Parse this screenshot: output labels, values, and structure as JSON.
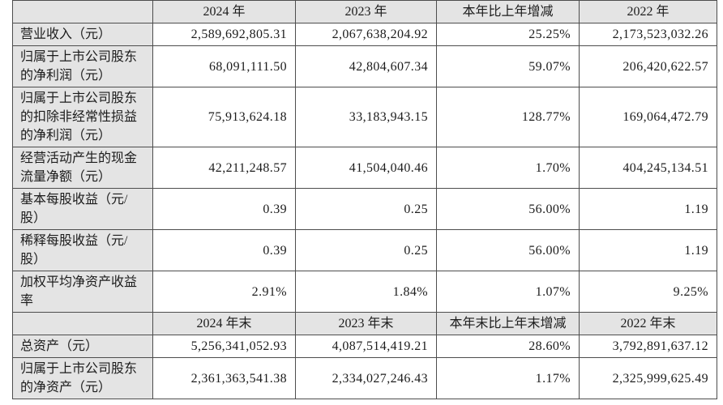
{
  "document": {
    "kind": "key-accounting-data-table",
    "colors": {
      "header_bg": "#e4e4e4",
      "label_bg": "#e4e4e4",
      "cell_bg": "#ffffff",
      "border": "#4d4d4d",
      "text": "#1c1c1c"
    },
    "sections": [
      {
        "columns": [
          "",
          "2024 年",
          "2023 年",
          "本年比上年增减",
          "2022 年"
        ],
        "rows": [
          {
            "label": "营业收入（元）",
            "values": [
              "2,589,692,805.31",
              "2,067,638,204.92",
              "25.25%",
              "2,173,523,032.26"
            ]
          },
          {
            "label": "归属于上市公司股东\n的净利润（元）",
            "values": [
              "68,091,111.50",
              "42,804,607.34",
              "59.07%",
              "206,420,622.57"
            ]
          },
          {
            "label": "归属于上市公司股东\n的扣除非经常性损益\n的净利润（元）",
            "values": [
              "75,913,624.18",
              "33,183,943.15",
              "128.77%",
              "169,064,472.79"
            ]
          },
          {
            "label": "经营活动产生的现金\n流量净额（元）",
            "values": [
              "42,211,248.57",
              "41,504,040.46",
              "1.70%",
              "404,245,134.51"
            ]
          },
          {
            "label": "基本每股收益（元/\n股）",
            "values": [
              "0.39",
              "0.25",
              "56.00%",
              "1.19"
            ]
          },
          {
            "label": "稀释每股收益（元/\n股）",
            "values": [
              "0.39",
              "0.25",
              "56.00%",
              "1.19"
            ]
          },
          {
            "label": "加权平均净资产收益\n率",
            "values": [
              "2.91%",
              "1.84%",
              "1.07%",
              "9.25%"
            ]
          }
        ]
      },
      {
        "columns": [
          "",
          "2024 年末",
          "2023 年末",
          "本年末比上年末增减",
          "2022 年末"
        ],
        "rows": [
          {
            "label": "总资产（元）",
            "values": [
              "5,256,341,052.93",
              "4,087,514,419.21",
              "28.60%",
              "3,792,891,637.12"
            ]
          },
          {
            "label": "归属于上市公司股东\n的净资产（元）",
            "values": [
              "2,361,363,541.38",
              "2,334,027,246.43",
              "1.17%",
              "2,325,999,625.49"
            ]
          }
        ]
      }
    ]
  }
}
